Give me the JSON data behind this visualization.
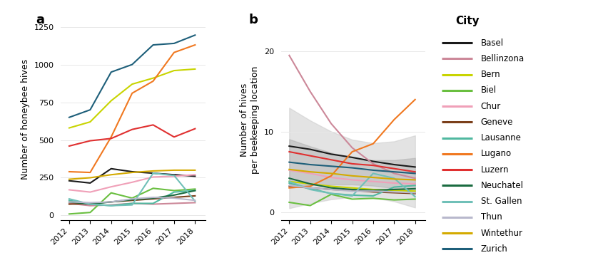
{
  "years": [
    2012,
    2013,
    2014,
    2015,
    2016,
    2017,
    2018
  ],
  "cities": [
    "Basel",
    "Bellinzona",
    "Bern",
    "Biel",
    "Chur",
    "Geneve",
    "Lausanne",
    "Lugano",
    "Luzern",
    "Neuchatel",
    "St. Gallen",
    "Thun",
    "Wintethur",
    "Zurich"
  ],
  "colors": {
    "Basel": "#1a1a1a",
    "Bellinzona": "#cc8899",
    "Bern": "#c8d400",
    "Biel": "#6abf40",
    "Chur": "#f0a0b8",
    "Geneve": "#7b3f1a",
    "Lausanne": "#50b8a0",
    "Lugano": "#f07820",
    "Luzern": "#e03030",
    "Neuchatel": "#1a6b40",
    "St. Gallen": "#70c0b8",
    "Thun": "#b8b8cc",
    "Wintethur": "#d4aa00",
    "Zurich": "#1e5f7a"
  },
  "hives_data": {
    "Basel": [
      230,
      215,
      310,
      290,
      280,
      270,
      260
    ],
    "Bellinzona": [
      80,
      65,
      70,
      80,
      75,
      80,
      85
    ],
    "Bern": [
      580,
      620,
      760,
      870,
      910,
      960,
      970
    ],
    "Biel": [
      10,
      20,
      150,
      115,
      180,
      165,
      175
    ],
    "Chur": [
      170,
      155,
      190,
      220,
      255,
      260,
      270
    ],
    "Geneve": [
      75,
      80,
      90,
      100,
      110,
      120,
      130
    ],
    "Lausanne": [
      100,
      75,
      65,
      80,
      80,
      155,
      165
    ],
    "Lugano": [
      290,
      285,
      520,
      810,
      890,
      1080,
      1130
    ],
    "Luzern": [
      460,
      495,
      510,
      570,
      600,
      520,
      575
    ],
    "Neuchatel": [
      90,
      75,
      90,
      105,
      115,
      135,
      165
    ],
    "St. Gallen": [
      110,
      75,
      65,
      70,
      280,
      265,
      95
    ],
    "Thun": [
      90,
      85,
      90,
      110,
      120,
      115,
      100
    ],
    "Wintethur": [
      240,
      250,
      270,
      285,
      295,
      300,
      300
    ],
    "Zurich": [
      650,
      700,
      950,
      1000,
      1130,
      1140,
      1195
    ]
  },
  "hpl_data": {
    "Basel": [
      8.2,
      7.8,
      7.2,
      6.8,
      6.3,
      5.9,
      5.6
    ],
    "Bellinzona": [
      19.5,
      15.0,
      11.0,
      8.0,
      6.0,
      4.8,
      4.2
    ],
    "Bern": [
      3.8,
      3.5,
      3.2,
      3.0,
      2.8,
      2.7,
      2.6
    ],
    "Biel": [
      1.2,
      0.8,
      2.2,
      1.6,
      1.7,
      1.5,
      1.6
    ],
    "Chur": [
      5.2,
      4.8,
      4.3,
      4.0,
      3.8,
      3.6,
      3.5
    ],
    "Geneve": [
      3.2,
      3.0,
      2.8,
      2.7,
      2.5,
      2.4,
      2.3
    ],
    "Lausanne": [
      3.6,
      2.9,
      2.3,
      2.1,
      2.0,
      3.1,
      3.3
    ],
    "Lugano": [
      3.0,
      3.2,
      4.5,
      7.5,
      8.5,
      11.5,
      14.0
    ],
    "Luzern": [
      7.5,
      7.0,
      6.5,
      6.0,
      5.8,
      5.4,
      5.0
    ],
    "Neuchatel": [
      4.2,
      3.5,
      3.0,
      2.8,
      2.7,
      2.8,
      2.9
    ],
    "St. Gallen": [
      3.8,
      2.8,
      2.3,
      2.0,
      4.8,
      4.2,
      1.9
    ],
    "Thun": [
      3.3,
      3.0,
      2.8,
      2.6,
      2.6,
      2.5,
      2.4
    ],
    "Wintethur": [
      5.3,
      5.0,
      4.8,
      4.5,
      4.3,
      4.1,
      4.0
    ],
    "Zurich": [
      6.2,
      5.9,
      5.7,
      5.5,
      5.2,
      5.0,
      4.8
    ]
  },
  "ylabel_a": "Number of honeybee hives",
  "ylabel_b": "Number of hives\nper beekeeping location",
  "bg_color": "#ffffff"
}
